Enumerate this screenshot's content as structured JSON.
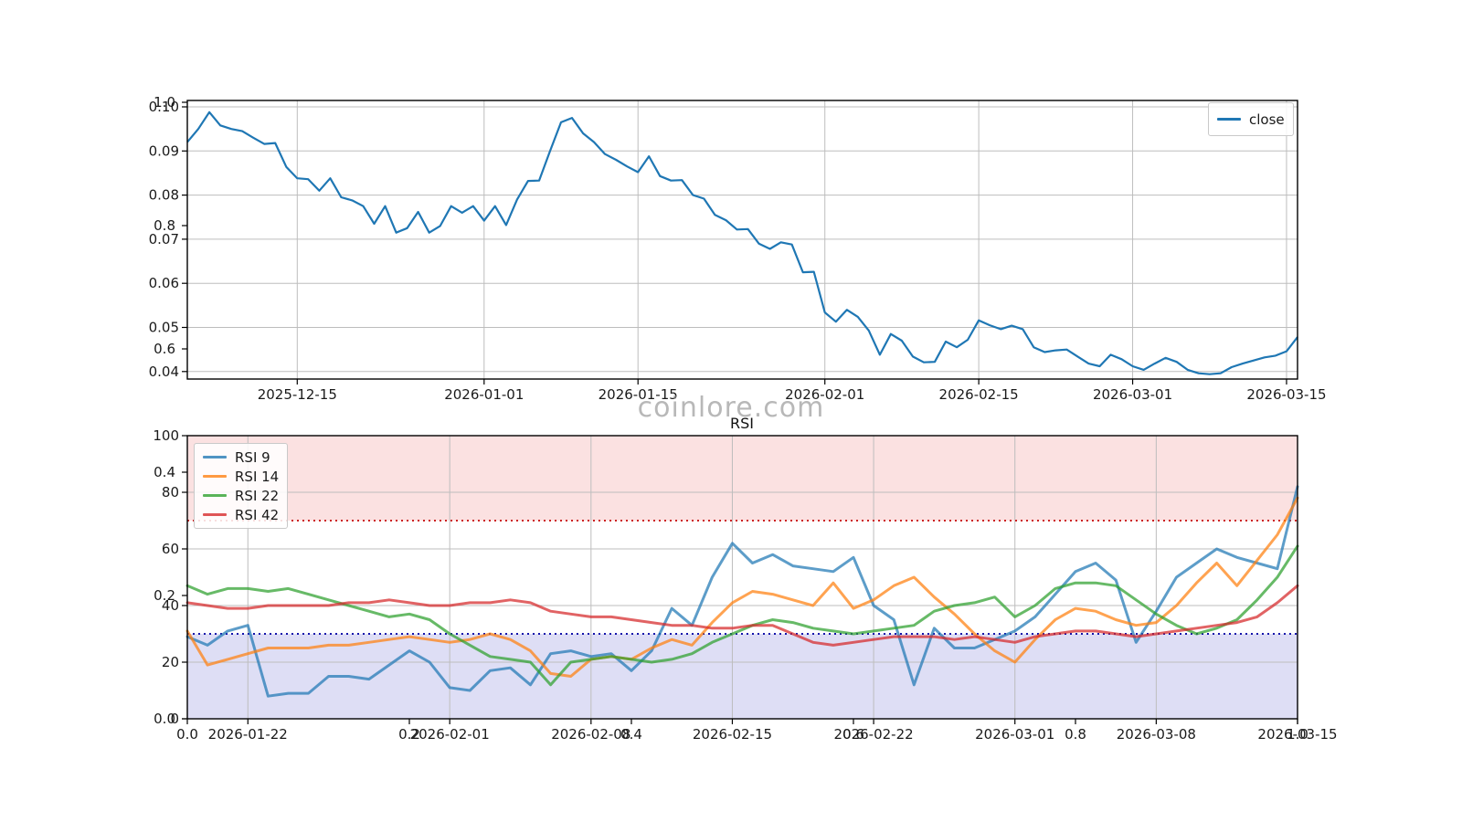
{
  "watermark": {
    "text": "coinlore.com"
  },
  "colors": {
    "close_line": "#1f77b4",
    "rsi9": "#1f77b4",
    "rsi14": "#ff7f0e",
    "rsi22": "#2ca02c",
    "rsi42": "#d62728",
    "overbought_band": "#fbe1e1",
    "oversold_band": "#dedef5",
    "overbought_dotted_line": "#cc2222",
    "oversold_dotted_line": "#1111aa",
    "grid": "#bdbdbd",
    "spine": "#000000"
  },
  "ghost_axis": {
    "x_tick_labels": [
      "0.0",
      "0.2",
      "0.4",
      "0.6",
      "0.8",
      "1.0"
    ],
    "y_tick_labels": [
      "0.0",
      "0.2",
      "0.4",
      "0.6",
      "0.8",
      "1.0"
    ]
  },
  "chart_data": [
    {
      "type": "line",
      "title": "",
      "x_start": "2025-12-05",
      "x_end": "2026-03-16",
      "freq": "daily",
      "ylim": [
        0.0373,
        0.1014
      ],
      "grid": true,
      "legend_position": "upper right",
      "y_tick_labels": [
        "0.10",
        "0.09",
        "0.08",
        "0.07",
        "0.06",
        "0.05",
        "0.04"
      ],
      "x_ticks": [
        {
          "label": "2025-12-15",
          "day": 10
        },
        {
          "label": "2026-01-01",
          "day": 27
        },
        {
          "label": "2026-01-15",
          "day": 41
        },
        {
          "label": "2026-02-01",
          "day": 58
        },
        {
          "label": "2026-02-15",
          "day": 72
        },
        {
          "label": "2026-03-01",
          "day": 86
        },
        {
          "label": "2026-03-15",
          "day": 100
        }
      ],
      "series": [
        {
          "name": "close",
          "values": [
            0.092,
            0.095,
            0.0988,
            0.0958,
            0.095,
            0.0945,
            0.093,
            0.0916,
            0.0918,
            0.0864,
            0.0838,
            0.0836,
            0.081,
            0.0838,
            0.0795,
            0.0788,
            0.0775,
            0.0735,
            0.0775,
            0.0715,
            0.0725,
            0.0762,
            0.0715,
            0.073,
            0.0775,
            0.076,
            0.0775,
            0.0742,
            0.0775,
            0.0732,
            0.079,
            0.0832,
            0.0833,
            0.09,
            0.0965,
            0.0975,
            0.094,
            0.092,
            0.0893,
            0.088,
            0.0865,
            0.0852,
            0.0888,
            0.0843,
            0.0833,
            0.0834,
            0.08,
            0.0792,
            0.0755,
            0.0743,
            0.0722,
            0.0723,
            0.069,
            0.0678,
            0.0693,
            0.0688,
            0.0625,
            0.0626,
            0.0534,
            0.0513,
            0.054,
            0.0524,
            0.0493,
            0.0438,
            0.0485,
            0.047,
            0.0434,
            0.0421,
            0.0422,
            0.0468,
            0.0455,
            0.0472,
            0.0516,
            0.0505,
            0.0496,
            0.0504,
            0.0496,
            0.0455,
            0.0444,
            0.0448,
            0.045,
            0.0434,
            0.0418,
            0.0412,
            0.0438,
            0.0428,
            0.0412,
            0.0404,
            0.0418,
            0.0431,
            0.0422,
            0.0404,
            0.0396,
            0.0394,
            0.0396,
            0.041,
            0.0418,
            0.0425,
            0.0432,
            0.0436,
            0.0446,
            0.0478
          ]
        }
      ]
    },
    {
      "type": "line",
      "title": "RSI",
      "x_start": "2026-01-19",
      "x_end": "2026-03-15",
      "freq": "daily",
      "ylim": [
        0,
        100
      ],
      "grid": true,
      "legend_position": "upper left",
      "overbought_level": 70,
      "oversold_level": 30,
      "y_tick_labels": [
        "100",
        "80",
        "60",
        "40",
        "20",
        "0"
      ],
      "x_ticks": [
        {
          "label": "2026-01-22",
          "day": 3
        },
        {
          "label": "2026-02-01",
          "day": 13
        },
        {
          "label": "2026-02-08",
          "day": 20
        },
        {
          "label": "2026-02-15",
          "day": 27
        },
        {
          "label": "2026-02-22",
          "day": 34
        },
        {
          "label": "2026-03-01",
          "day": 41
        },
        {
          "label": "2026-03-08",
          "day": 48
        },
        {
          "label": "2026-03-15",
          "day": 55
        }
      ],
      "series": [
        {
          "name": "RSI 9",
          "values": [
            29,
            26,
            31,
            33,
            8,
            9,
            9,
            15,
            15,
            14,
            19,
            24,
            20,
            11,
            10,
            17,
            18,
            12,
            23,
            24,
            22,
            23,
            17,
            24,
            39,
            33,
            50,
            62,
            55,
            58,
            54,
            53,
            52,
            57,
            40,
            35,
            12,
            32,
            25,
            25,
            28,
            31,
            36,
            44,
            52,
            55,
            49,
            27,
            38,
            50,
            55,
            60,
            57,
            55,
            53,
            82
          ]
        },
        {
          "name": "RSI 14",
          "values": [
            31,
            19,
            21,
            23,
            25,
            25,
            25,
            26,
            26,
            27,
            28,
            29,
            28,
            27,
            28,
            30,
            28,
            24,
            16,
            15,
            21,
            22,
            21,
            25,
            28,
            26,
            34,
            41,
            45,
            44,
            42,
            40,
            48,
            39,
            42,
            47,
            50,
            43,
            37,
            30,
            24,
            20,
            28,
            35,
            39,
            38,
            35,
            33,
            34,
            40,
            48,
            55,
            47,
            56,
            65,
            78
          ]
        },
        {
          "name": "RSI 22",
          "values": [
            47,
            44,
            46,
            46,
            45,
            46,
            44,
            42,
            40,
            38,
            36,
            37,
            35,
            30,
            26,
            22,
            21,
            20,
            12,
            20,
            21,
            22,
            21,
            20,
            21,
            23,
            27,
            30,
            33,
            35,
            34,
            32,
            31,
            30,
            31,
            32,
            33,
            38,
            40,
            41,
            43,
            36,
            40,
            46,
            48,
            48,
            47,
            42,
            37,
            33,
            30,
            32,
            35,
            42,
            50,
            61
          ]
        },
        {
          "name": "RSI 42",
          "values": [
            41,
            40,
            39,
            39,
            40,
            40,
            40,
            40,
            41,
            41,
            42,
            41,
            40,
            40,
            41,
            41,
            42,
            41,
            38,
            37,
            36,
            36,
            35,
            34,
            33,
            33,
            32,
            32,
            33,
            33,
            30,
            27,
            26,
            27,
            28,
            29,
            29,
            29,
            28,
            29,
            28,
            27,
            29,
            30,
            31,
            31,
            30,
            29,
            30,
            31,
            32,
            33,
            34,
            36,
            41,
            47
          ]
        }
      ]
    }
  ]
}
